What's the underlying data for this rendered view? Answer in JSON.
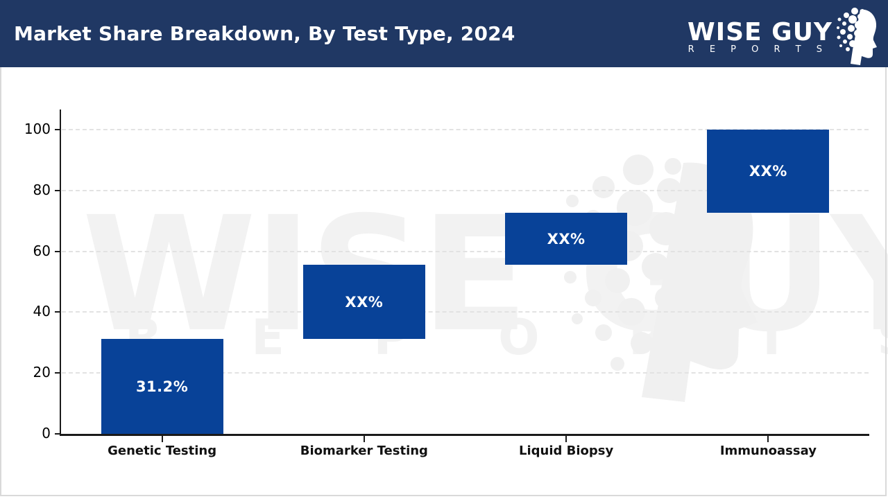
{
  "header": {
    "title": "Market Share Breakdown, By Test Type, 2024",
    "bg_color": "#203864",
    "logo": {
      "line1": "WISE GUY",
      "line2": "REPORTS"
    }
  },
  "watermark": {
    "line1": "WISE GUY",
    "line2": "REPORTS"
  },
  "chart_data": {
    "type": "bar",
    "subtype": "waterfall",
    "title": "Market Share Breakdown, By Test Type, 2024",
    "categories": [
      "Genetic Testing",
      "Biomarker Testing",
      "Liquid Biopsy",
      "Immunoassay"
    ],
    "segments": [
      {
        "category": "Genetic Testing",
        "start": 0,
        "end": 31.2,
        "label": "31.2%"
      },
      {
        "category": "Biomarker Testing",
        "start": 31.2,
        "end": 55.5,
        "label": "XX%"
      },
      {
        "category": "Liquid Biopsy",
        "start": 55.5,
        "end": 72.7,
        "label": "XX%"
      },
      {
        "category": "Immunoassay",
        "start": 72.7,
        "end": 100,
        "label": "XX%"
      }
    ],
    "yticks": [
      0,
      20,
      40,
      60,
      80,
      100
    ],
    "ylim": [
      0,
      105
    ],
    "xlabel": "",
    "ylabel": "",
    "bar_color": "#084298",
    "label_color": "#ffffff",
    "grid": "horizontal-dashed",
    "legend": "none"
  }
}
